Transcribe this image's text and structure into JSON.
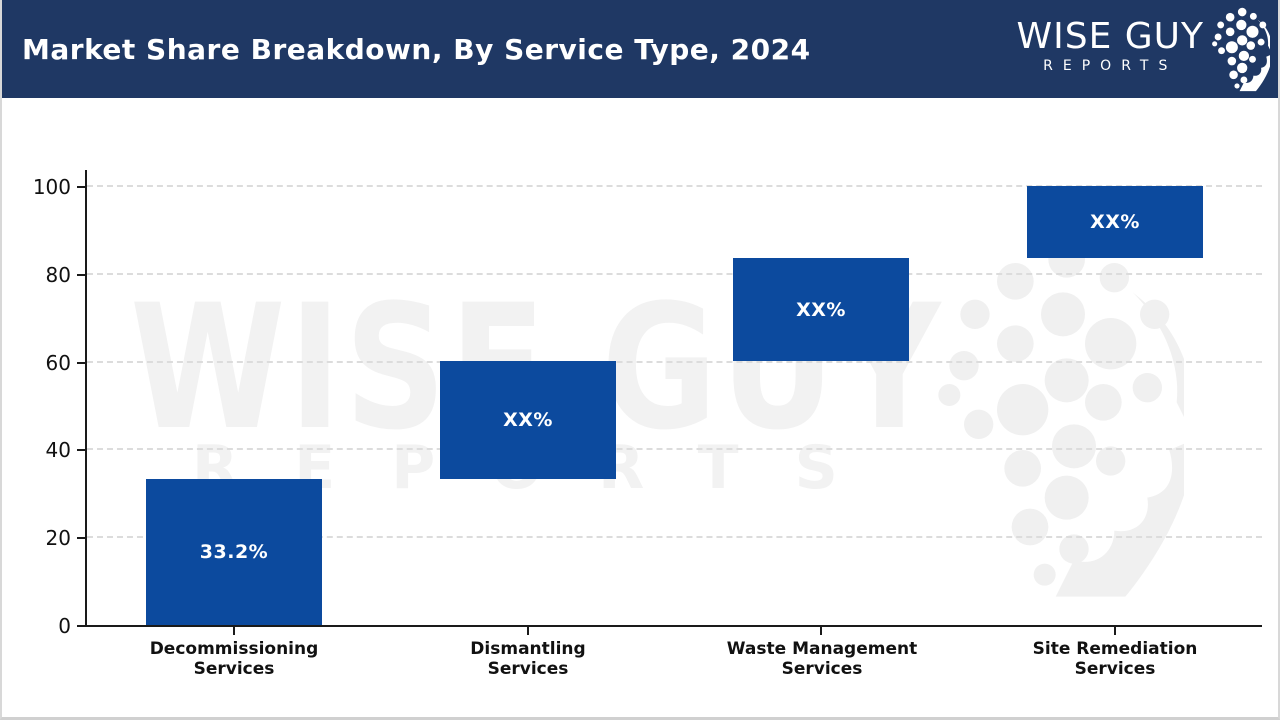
{
  "header": {
    "title": "Market Share Breakdown, By Service Type, 2024",
    "logo": {
      "line1": "WISE GUY",
      "line2": "REPORTS"
    },
    "bg_color": "#1f3864",
    "text_color": "#ffffff"
  },
  "watermark": {
    "line1": "WISE GUY",
    "line2": "REPORTS"
  },
  "chart_data": {
    "type": "bar",
    "subtype": "waterfall-floating-bars",
    "title": "Market Share Breakdown, By Service Type, 2024",
    "xlabel": "",
    "ylabel": "",
    "categories": [
      [
        "Decommissioning",
        "Services"
      ],
      [
        "Dismantling",
        "Services"
      ],
      [
        "Waste Management",
        "Services"
      ],
      [
        "Site Remediation",
        "Services"
      ]
    ],
    "segments": [
      {
        "start": 0,
        "end": 33.2,
        "value": 33.2,
        "label": "33.2%"
      },
      {
        "start": 33.2,
        "end": 60.1,
        "value": 26.9,
        "label": "XX%"
      },
      {
        "start": 60.1,
        "end": 83.6,
        "value": 23.5,
        "label": "XX%"
      },
      {
        "start": 83.6,
        "end": 100,
        "value": 16.4,
        "label": "XX%"
      }
    ],
    "ylim": [
      0,
      100
    ],
    "yticks": [
      0,
      20,
      40,
      60,
      80,
      100
    ],
    "grid": "horizontal-dashed",
    "legend": "none",
    "bar_color": "#0c4a9e",
    "bar_label_color": "#ffffff",
    "grid_color": "#dcdcdc",
    "axis_color": "#1a1a1a"
  }
}
